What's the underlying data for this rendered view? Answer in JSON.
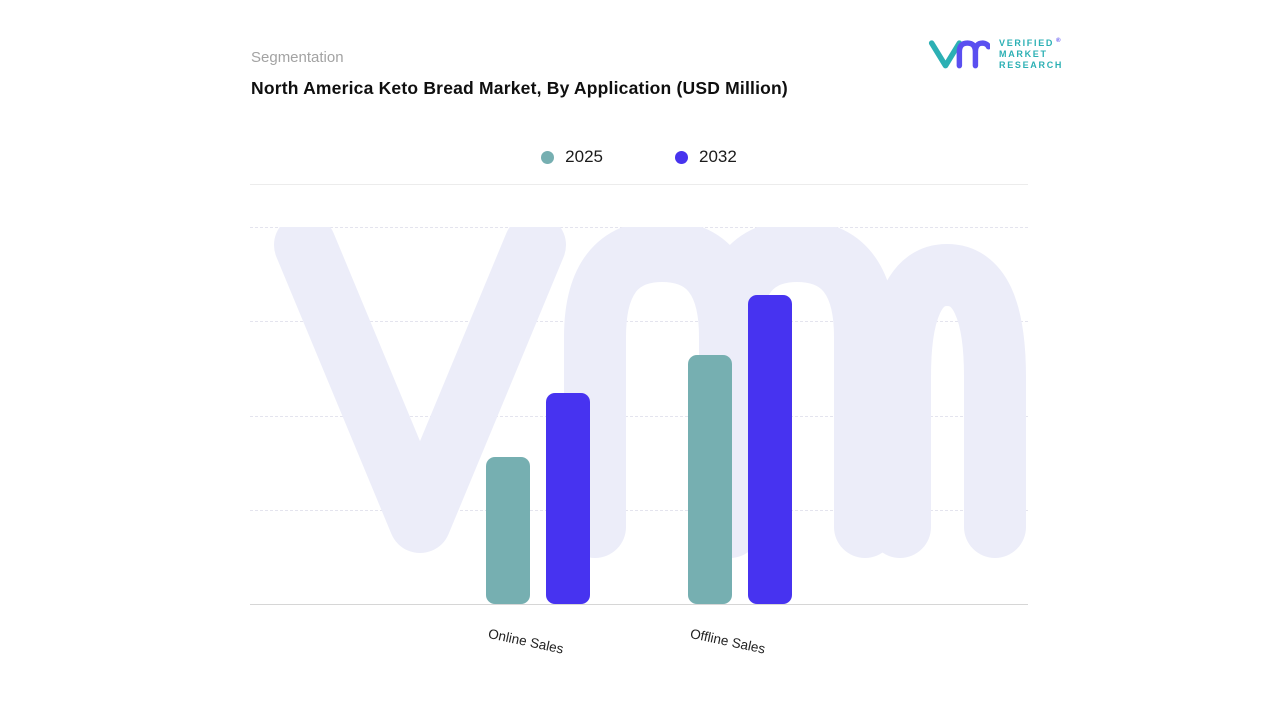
{
  "header": {
    "eyebrow": "Segmentation",
    "title": "North America Keto Bread Market, By Application (USD Million)"
  },
  "logo": {
    "lines": [
      "VERIFIED",
      "MARKET",
      "RESEARCH"
    ],
    "registered": "®",
    "teal": "#2CB0B4",
    "purple": "#5A4FF0"
  },
  "watermark": {
    "color": "#ECEDF9"
  },
  "legend": [
    {
      "label": "2025",
      "color": "#76AFB1"
    },
    {
      "label": "2032",
      "color": "#4733EE"
    }
  ],
  "chart_data": {
    "type": "bar",
    "title": "North America Keto Bread Market, By Application (USD Million)",
    "categories": [
      "Online Sales",
      "Offline Sales"
    ],
    "series": [
      {
        "name": "2025",
        "color": "#76AFB1",
        "values": [
          39,
          66
        ]
      },
      {
        "name": "2032",
        "color": "#4733F0",
        "values": [
          56,
          82
        ]
      }
    ],
    "ylim": [
      0,
      100
    ],
    "xlabel": "",
    "ylabel": "",
    "value_scale": "relative (no y-axis tick labels shown in figure)",
    "grid": "dashed-horizontal",
    "legend_position": "top-center"
  }
}
